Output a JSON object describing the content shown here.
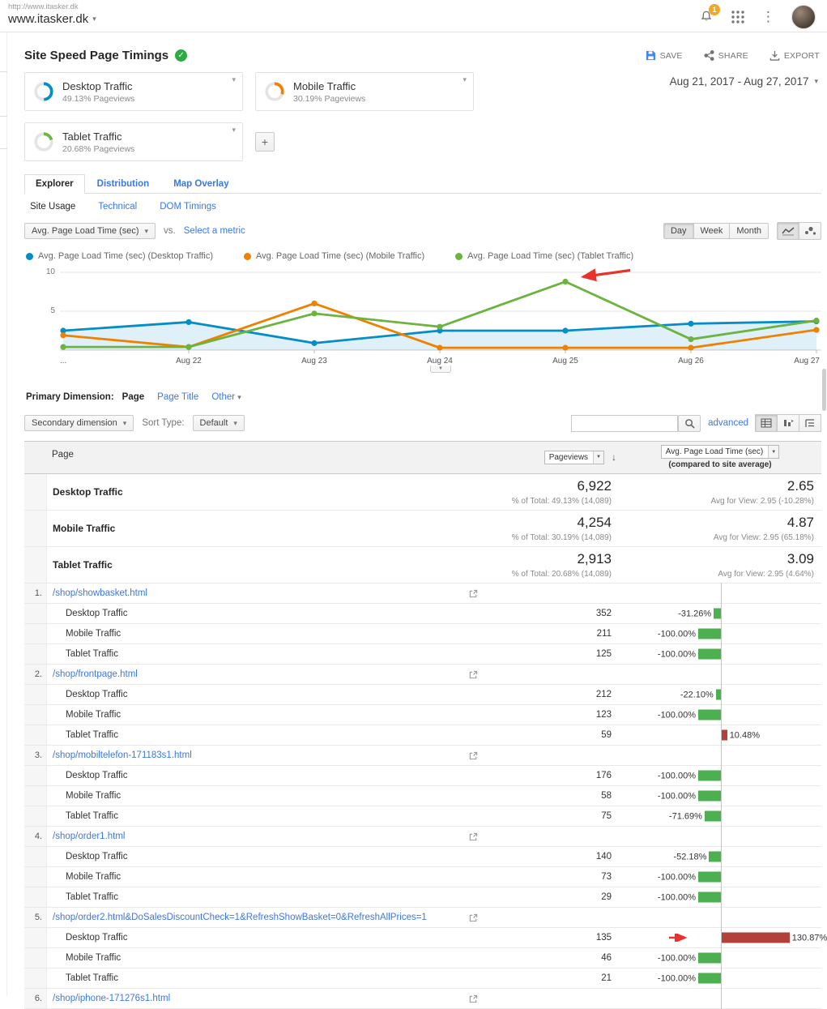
{
  "icons": {
    "caret_down": "▾",
    "caret_solid": "▼",
    "sort_desc": "↓",
    "check": "✓",
    "plus": "+",
    "kebab": "⋮"
  },
  "header": {
    "property_url": "http://www.itasker.dk",
    "account_name": "www.itasker.dk",
    "notification_count": "1"
  },
  "report": {
    "title": "Site Speed Page Timings",
    "save_label": "SAVE",
    "share_label": "SHARE",
    "export_label": "EXPORT",
    "date_range": "Aug 21, 2017 - Aug 27, 2017"
  },
  "segments": [
    {
      "name": "Desktop Traffic",
      "sub": "49.13% Pageviews",
      "pct": 49.13,
      "color": "#058dc7"
    },
    {
      "name": "Mobile Traffic",
      "sub": "30.19% Pageviews",
      "pct": 30.19,
      "color": "#ee8100"
    },
    {
      "name": "Tablet Traffic",
      "sub": "20.68% Pageviews",
      "pct": 20.68,
      "color": "#6cb33f"
    }
  ],
  "tabs": {
    "explorer": "Explorer",
    "distribution": "Distribution",
    "map_overlay": "Map Overlay"
  },
  "subtabs": {
    "site_usage": "Site Usage",
    "technical": "Technical",
    "dom_timings": "DOM Timings"
  },
  "controls": {
    "metric": "Avg. Page Load Time (sec)",
    "vs": "vs.",
    "select_metric": "Select a metric",
    "day": "Day",
    "week": "Week",
    "month": "Month"
  },
  "chart_data": {
    "type": "line",
    "x": [
      "Aug 21",
      "Aug 22",
      "Aug 23",
      "Aug 24",
      "Aug 25",
      "Aug 26",
      "Aug 27"
    ],
    "x_tick_labels": [
      "...",
      "Aug 22",
      "Aug 23",
      "Aug 24",
      "Aug 25",
      "Aug 26",
      "Aug 27"
    ],
    "ylim": [
      0,
      10
    ],
    "yticks": [
      5,
      10
    ],
    "series": [
      {
        "name": "Avg. Page Load Time (sec) (Desktop Traffic)",
        "color": "#058dc7",
        "area": true,
        "values": [
          2.5,
          3.6,
          0.9,
          2.5,
          2.5,
          3.4,
          3.7
        ]
      },
      {
        "name": "Avg. Page Load Time (sec) (Mobile Traffic)",
        "color": "#ee8100",
        "values": [
          1.9,
          0.4,
          6.0,
          0.3,
          0.3,
          0.3,
          2.6
        ]
      },
      {
        "name": "Avg. Page Load Time (sec) (Tablet Traffic)",
        "color": "#6cb33f",
        "values": [
          0.4,
          0.4,
          4.7,
          3.0,
          8.8,
          1.4,
          3.8
        ]
      }
    ],
    "annotation": {
      "type": "arrow",
      "target_series": "Tablet Traffic",
      "target_x": "Aug 25",
      "color": "#e8322d"
    }
  },
  "dimension": {
    "label": "Primary Dimension:",
    "page": "Page",
    "page_title": "Page Title",
    "other": "Other"
  },
  "toolbar": {
    "secondary_dimension": "Secondary dimension",
    "sort_type_label": "Sort Type:",
    "sort_type_value": "Default",
    "advanced": "advanced",
    "search_value": ""
  },
  "table": {
    "header": {
      "page": "Page",
      "pageviews": "Pageviews",
      "load_time": "Avg. Page Load Time (sec)",
      "load_time_sub": "(compared to site average)"
    },
    "summary_rows": [
      {
        "label": "Desktop Traffic",
        "pageviews": "6,922",
        "pageviews_sub": "% of Total: 49.13% (14,089)",
        "load_time": "2.65",
        "load_time_sub": "Avg for View: 2.95 (-10.28%)"
      },
      {
        "label": "Mobile Traffic",
        "pageviews": "4,254",
        "pageviews_sub": "% of Total: 30.19% (14,089)",
        "load_time": "4.87",
        "load_time_sub": "Avg for View: 2.95 (65.18%)"
      },
      {
        "label": "Tablet Traffic",
        "pageviews": "2,913",
        "pageviews_sub": "% of Total: 20.68% (14,089)",
        "load_time": "3.09",
        "load_time_sub": "Avg for View: 2.95 (4.64%)"
      }
    ],
    "groups": [
      {
        "index": "1.",
        "url": "/shop/showbasket.html",
        "rows": [
          {
            "label": "Desktop Traffic",
            "pageviews": "352",
            "pct": -31.26,
            "pct_label": "-31.26%"
          },
          {
            "label": "Mobile Traffic",
            "pageviews": "211",
            "pct": -100,
            "pct_label": "-100.00%"
          },
          {
            "label": "Tablet Traffic",
            "pageviews": "125",
            "pct": -100,
            "pct_label": "-100.00%"
          }
        ]
      },
      {
        "index": "2.",
        "url": "/shop/frontpage.html",
        "rows": [
          {
            "label": "Desktop Traffic",
            "pageviews": "212",
            "pct": -22.1,
            "pct_label": "-22.10%"
          },
          {
            "label": "Mobile Traffic",
            "pageviews": "123",
            "pct": -100,
            "pct_label": "-100.00%"
          },
          {
            "label": "Tablet Traffic",
            "pageviews": "59",
            "pct": 10.48,
            "pct_label": "10.48%"
          }
        ]
      },
      {
        "index": "3.",
        "url": "/shop/mobiltelefon-171183s1.html",
        "rows": [
          {
            "label": "Desktop Traffic",
            "pageviews": "176",
            "pct": -100,
            "pct_label": "-100.00%"
          },
          {
            "label": "Mobile Traffic",
            "pageviews": "58",
            "pct": -100,
            "pct_label": "-100.00%"
          },
          {
            "label": "Tablet Traffic",
            "pageviews": "75",
            "pct": -71.69,
            "pct_label": "-71.69%"
          }
        ]
      },
      {
        "index": "4.",
        "url": "/shop/order1.html",
        "rows": [
          {
            "label": "Desktop Traffic",
            "pageviews": "140",
            "pct": -52.18,
            "pct_label": "-52.18%"
          },
          {
            "label": "Mobile Traffic",
            "pageviews": "73",
            "pct": -100,
            "pct_label": "-100.00%"
          },
          {
            "label": "Tablet Traffic",
            "pageviews": "29",
            "pct": -100,
            "pct_label": "-100.00%"
          }
        ]
      },
      {
        "index": "5.",
        "url": "/shop/order2.html&DoSalesDiscountCheck=1&RefreshShowBasket=0&RefreshAllPrices=1",
        "rows": [
          {
            "label": "Desktop Traffic",
            "pageviews": "135",
            "pct": 130.87,
            "pct_label": "130.87%",
            "arrow": true
          },
          {
            "label": "Mobile Traffic",
            "pageviews": "46",
            "pct": -100,
            "pct_label": "-100.00%"
          },
          {
            "label": "Tablet Traffic",
            "pageviews": "21",
            "pct": -100,
            "pct_label": "-100.00%"
          }
        ]
      },
      {
        "index": "6.",
        "url": "/shop/iphone-171276s1.html",
        "rows": []
      }
    ]
  },
  "colors": {
    "positive_bar": "#b2413a",
    "negative_bar": "#4caf50",
    "axis": "#c4c4c4",
    "link": "#3b78e7",
    "arrow": "#e8322d",
    "blue_area": "rgba(5,141,199,0.13)"
  }
}
